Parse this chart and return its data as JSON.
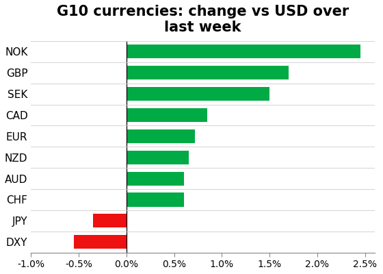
{
  "categories": [
    "NOK",
    "GBP",
    "SEK",
    "CAD",
    "EUR",
    "NZD",
    "AUD",
    "CHF",
    "JPY",
    "DXY"
  ],
  "values": [
    0.0245,
    0.017,
    0.015,
    0.0085,
    0.0072,
    0.0065,
    0.006,
    0.006,
    -0.0035,
    -0.0055
  ],
  "positive_color": "#00aa44",
  "negative_color": "#ee1111",
  "title": "G10 currencies: change vs USD over\nlast week",
  "title_fontsize": 15,
  "xlim": [
    -0.01,
    0.026
  ],
  "xticks": [
    -0.01,
    -0.005,
    0.0,
    0.005,
    0.01,
    0.015,
    0.02,
    0.025
  ],
  "background_color": "#ffffff",
  "bar_height": 0.65,
  "label_fontsize": 11,
  "tick_fontsize": 10
}
